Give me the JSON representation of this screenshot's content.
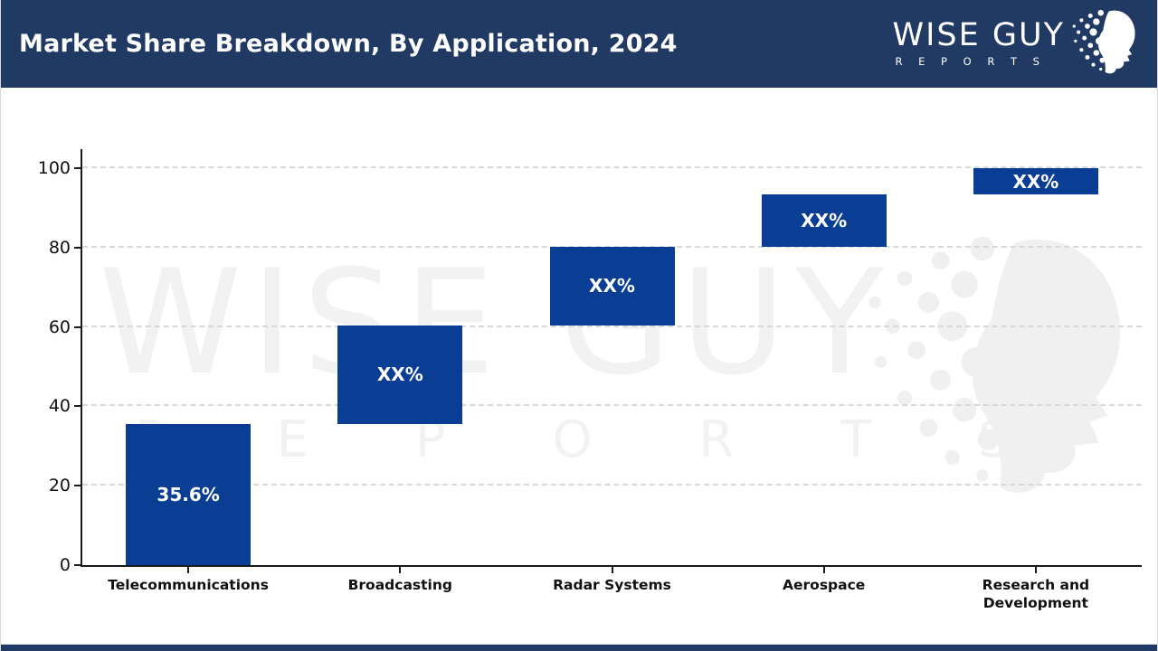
{
  "header": {
    "title": "Market Share Breakdown, By Application, 2024",
    "logo": {
      "line1": "WISE GUY",
      "line2": "R E P O R T S"
    }
  },
  "watermark": {
    "line1": "WISE GUY",
    "line2": "R E P O R T S"
  },
  "colors": {
    "header_bg": "#213a63",
    "bar_fill": "#0a3e94",
    "bar_label": "#ffffff",
    "grid_line": "#d8d8d8",
    "axis_line": "#1a1a1a",
    "text": "#111111",
    "watermark": "#f2f2f2",
    "page_border": "#d9d9d9"
  },
  "chart_data": {
    "type": "bar",
    "variant": "waterfall",
    "title": "Market Share Breakdown, By Application, 2024",
    "categories": [
      "Telecommunications",
      "Broadcasting",
      "Radar Systems",
      "Aerospace",
      "Research and Development"
    ],
    "segments": [
      {
        "category": "Telecommunications",
        "start": 0,
        "end": 35.6,
        "label": "35.6%"
      },
      {
        "category": "Broadcasting",
        "start": 35.6,
        "end": 60.4,
        "label": "XX%"
      },
      {
        "category": "Radar Systems",
        "start": 60.4,
        "end": 80.3,
        "label": "XX%"
      },
      {
        "category": "Aerospace",
        "start": 80.3,
        "end": 93.4,
        "label": "XX%"
      },
      {
        "category": "Research and Development",
        "start": 93.4,
        "end": 100,
        "label": "XX%"
      }
    ],
    "yticks": [
      0,
      20,
      40,
      60,
      80,
      100
    ],
    "ylim": [
      0,
      104.8
    ],
    "xlabel": "",
    "ylabel": "",
    "grid": "horizontal-dashed",
    "legend": "none"
  }
}
